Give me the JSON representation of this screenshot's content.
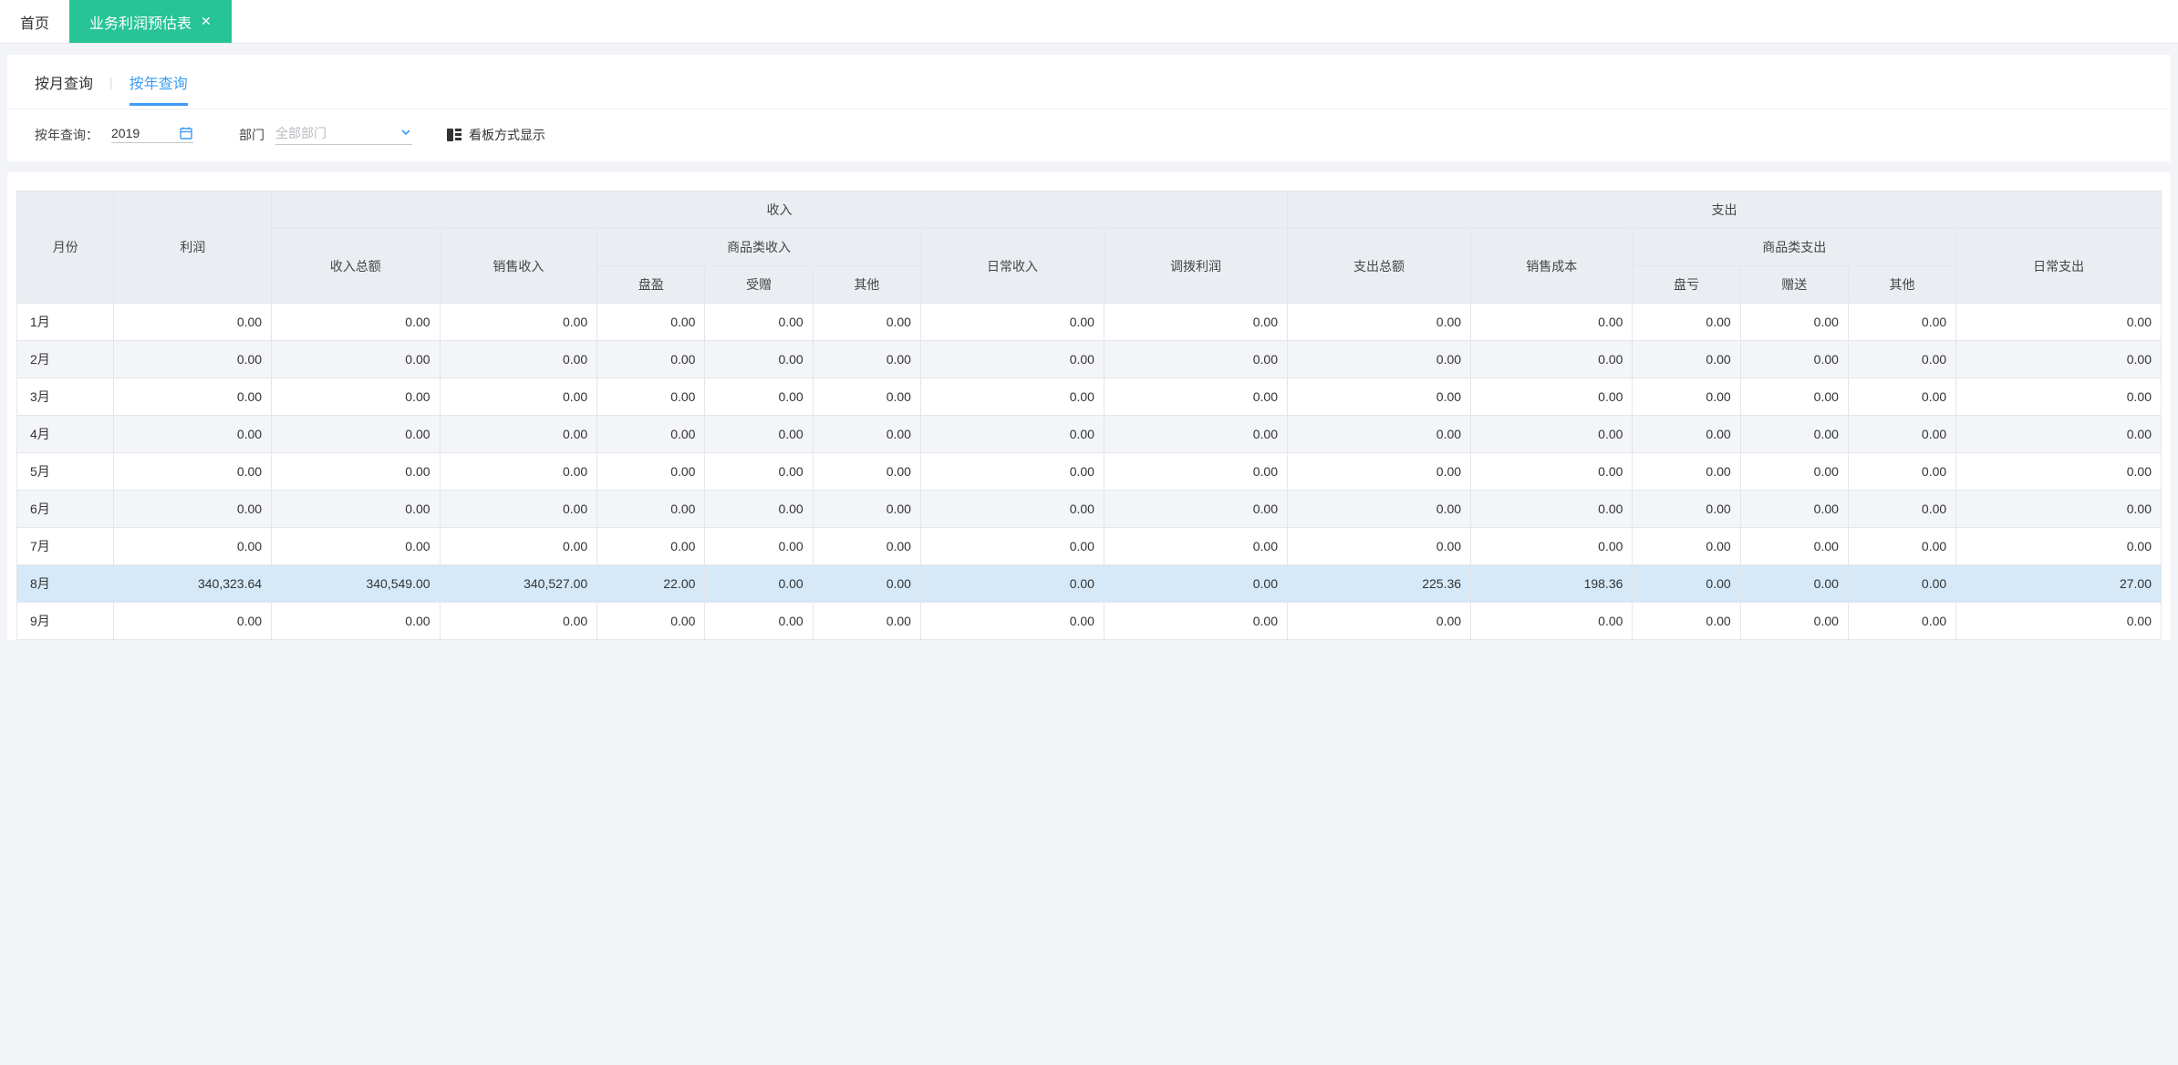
{
  "colors": {
    "accent_green": "#26c496",
    "accent_blue": "#3c9cf5",
    "page_bg": "#f2f4f7",
    "header_bg": "#eaeef3",
    "border": "#e3e6ea",
    "row_alt": "#f3f5f8",
    "row_highlight": "#d5e9f9"
  },
  "tabs": {
    "home": "首页",
    "active": "业务利润预估表"
  },
  "subtabs": {
    "by_month": "按月查询",
    "by_year": "按年查询"
  },
  "filters": {
    "year_label": "按年查询：",
    "year_value": "2019",
    "dept_label": "部门",
    "dept_placeholder": "全部部门",
    "kanban_label": "看板方式显示"
  },
  "table": {
    "headers": {
      "month": "月份",
      "profit": "利润",
      "income_group": "收入",
      "income_total": "收入总额",
      "sales_income": "销售收入",
      "goods_income_group": "商品类收入",
      "py": "盘盈",
      "sz": "受赠",
      "other_in": "其他",
      "daily_income": "日常收入",
      "transfer_profit": "调拨利润",
      "expense_group": "支出",
      "expense_total": "支出总额",
      "sales_cost": "销售成本",
      "goods_expense_group": "商品类支出",
      "pk": "盘亏",
      "zs": "赠送",
      "other_out": "其他",
      "daily_expense": "日常支出"
    },
    "rows": [
      {
        "month": "1月",
        "profit": "0.00",
        "income_total": "0.00",
        "sales_income": "0.00",
        "py": "0.00",
        "sz": "0.00",
        "other_in": "0.00",
        "daily_income": "0.00",
        "transfer_profit": "0.00",
        "expense_total": "0.00",
        "sales_cost": "0.00",
        "pk": "0.00",
        "zs": "0.00",
        "other_out": "0.00",
        "daily_expense": "0.00"
      },
      {
        "month": "2月",
        "profit": "0.00",
        "income_total": "0.00",
        "sales_income": "0.00",
        "py": "0.00",
        "sz": "0.00",
        "other_in": "0.00",
        "daily_income": "0.00",
        "transfer_profit": "0.00",
        "expense_total": "0.00",
        "sales_cost": "0.00",
        "pk": "0.00",
        "zs": "0.00",
        "other_out": "0.00",
        "daily_expense": "0.00"
      },
      {
        "month": "3月",
        "profit": "0.00",
        "income_total": "0.00",
        "sales_income": "0.00",
        "py": "0.00",
        "sz": "0.00",
        "other_in": "0.00",
        "daily_income": "0.00",
        "transfer_profit": "0.00",
        "expense_total": "0.00",
        "sales_cost": "0.00",
        "pk": "0.00",
        "zs": "0.00",
        "other_out": "0.00",
        "daily_expense": "0.00"
      },
      {
        "month": "4月",
        "profit": "0.00",
        "income_total": "0.00",
        "sales_income": "0.00",
        "py": "0.00",
        "sz": "0.00",
        "other_in": "0.00",
        "daily_income": "0.00",
        "transfer_profit": "0.00",
        "expense_total": "0.00",
        "sales_cost": "0.00",
        "pk": "0.00",
        "zs": "0.00",
        "other_out": "0.00",
        "daily_expense": "0.00"
      },
      {
        "month": "5月",
        "profit": "0.00",
        "income_total": "0.00",
        "sales_income": "0.00",
        "py": "0.00",
        "sz": "0.00",
        "other_in": "0.00",
        "daily_income": "0.00",
        "transfer_profit": "0.00",
        "expense_total": "0.00",
        "sales_cost": "0.00",
        "pk": "0.00",
        "zs": "0.00",
        "other_out": "0.00",
        "daily_expense": "0.00"
      },
      {
        "month": "6月",
        "profit": "0.00",
        "income_total": "0.00",
        "sales_income": "0.00",
        "py": "0.00",
        "sz": "0.00",
        "other_in": "0.00",
        "daily_income": "0.00",
        "transfer_profit": "0.00",
        "expense_total": "0.00",
        "sales_cost": "0.00",
        "pk": "0.00",
        "zs": "0.00",
        "other_out": "0.00",
        "daily_expense": "0.00"
      },
      {
        "month": "7月",
        "profit": "0.00",
        "income_total": "0.00",
        "sales_income": "0.00",
        "py": "0.00",
        "sz": "0.00",
        "other_in": "0.00",
        "daily_income": "0.00",
        "transfer_profit": "0.00",
        "expense_total": "0.00",
        "sales_cost": "0.00",
        "pk": "0.00",
        "zs": "0.00",
        "other_out": "0.00",
        "daily_expense": "0.00"
      },
      {
        "month": "8月",
        "highlight": true,
        "profit": "340,323.64",
        "income_total": "340,549.00",
        "sales_income": "340,527.00",
        "py": "22.00",
        "sz": "0.00",
        "other_in": "0.00",
        "daily_income": "0.00",
        "transfer_profit": "0.00",
        "expense_total": "225.36",
        "sales_cost": "198.36",
        "pk": "0.00",
        "zs": "0.00",
        "other_out": "0.00",
        "daily_expense": "27.00"
      },
      {
        "month": "9月",
        "profit": "0.00",
        "income_total": "0.00",
        "sales_income": "0.00",
        "py": "0.00",
        "sz": "0.00",
        "other_in": "0.00",
        "daily_income": "0.00",
        "transfer_profit": "0.00",
        "expense_total": "0.00",
        "sales_cost": "0.00",
        "pk": "0.00",
        "zs": "0.00",
        "other_out": "0.00",
        "daily_expense": "0.00"
      }
    ]
  }
}
